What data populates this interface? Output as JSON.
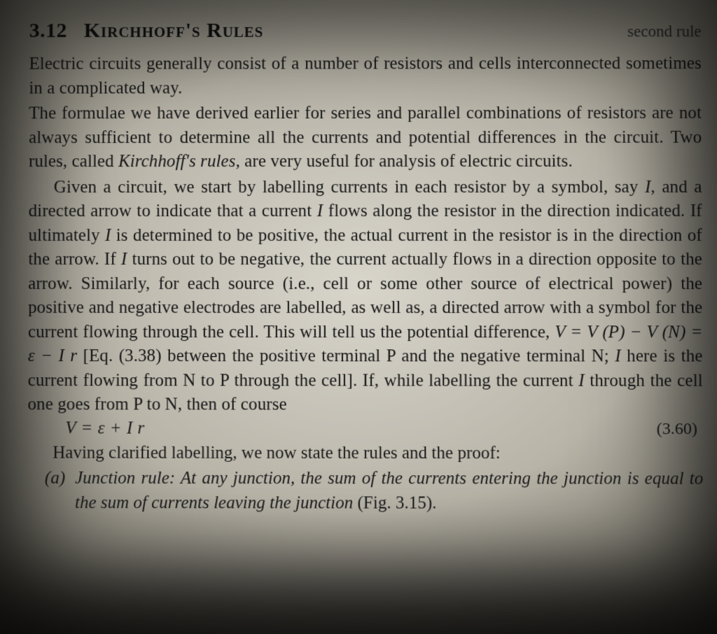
{
  "colors": {
    "text": "#161616",
    "heading": "#111111",
    "bg_center": "#d8d5cb",
    "bg_mid": "#b8b4a8",
    "bg_edge": "#3a3832"
  },
  "typography": {
    "body_family": "Georgia, Times New Roman, serif",
    "body_size_pt": 19,
    "heading_size_pt": 23,
    "line_height": 1.38
  },
  "heading": {
    "number": "3.12",
    "title": "Kirchhoff's Rules",
    "margin_note": "second rule"
  },
  "paragraphs": {
    "p1a": "Electric circuits generally consist of a number of resistors and cells interconnected sometimes in a complicated way.",
    "p1b_pre": "The formulae we have derived earlier for series and parallel combinations of resistors are not always sufficient to determine all the currents and potential differences in the circuit. Two rules, called ",
    "p1b_ital": "Kirchhoff's rules",
    "p1b_post": ", are very useful for analysis of electric circuits.",
    "p2_a": "Given a circuit, we start by labelling currents in each resistor by a symbol, say ",
    "p2_I1": "I",
    "p2_b": ", and a directed arrow to indicate that a current ",
    "p2_I2": "I",
    "p2_c": " flows along the resistor in the direction indicated. If ultimately ",
    "p2_I3": "I",
    "p2_d": " is determined to be positive, the actual current in the resistor is in the direction of the arrow. If ",
    "p2_I4": "I",
    "p2_e": " turns out to be negative, the current actually flows in a direction opposite to the arrow. Similarly, for each source (i.e., cell or some other source of electrical power) the positive and negative electrodes are labelled, as well as, a directed arrow with a symbol for the current flowing through the cell. This will tell us the potential difference, ",
    "p2_eq1": "V = V (P) − V (N) = ε − I r",
    "p2_f": " [Eq. (3.38) between the positive terminal P and the negative terminal N; ",
    "p2_I5": "I",
    "p2_g": " here is the current flowing from N to P through the cell]. If, while labelling the current ",
    "p2_I6": "I",
    "p2_h": " through the cell one goes from P to N, then of course"
  },
  "equation": {
    "expr": "V = ε + I r",
    "number": "(3.60)"
  },
  "proof_intro": "Having clarified labelling, we now state the rules and the proof:",
  "rule_a": {
    "label": "(a)",
    "lead": "Junction rule:",
    "text": " At any junction, the sum of the currents entering the junction is equal to the sum of currents leaving the junction ",
    "ref": "(Fig. 3.15)."
  }
}
